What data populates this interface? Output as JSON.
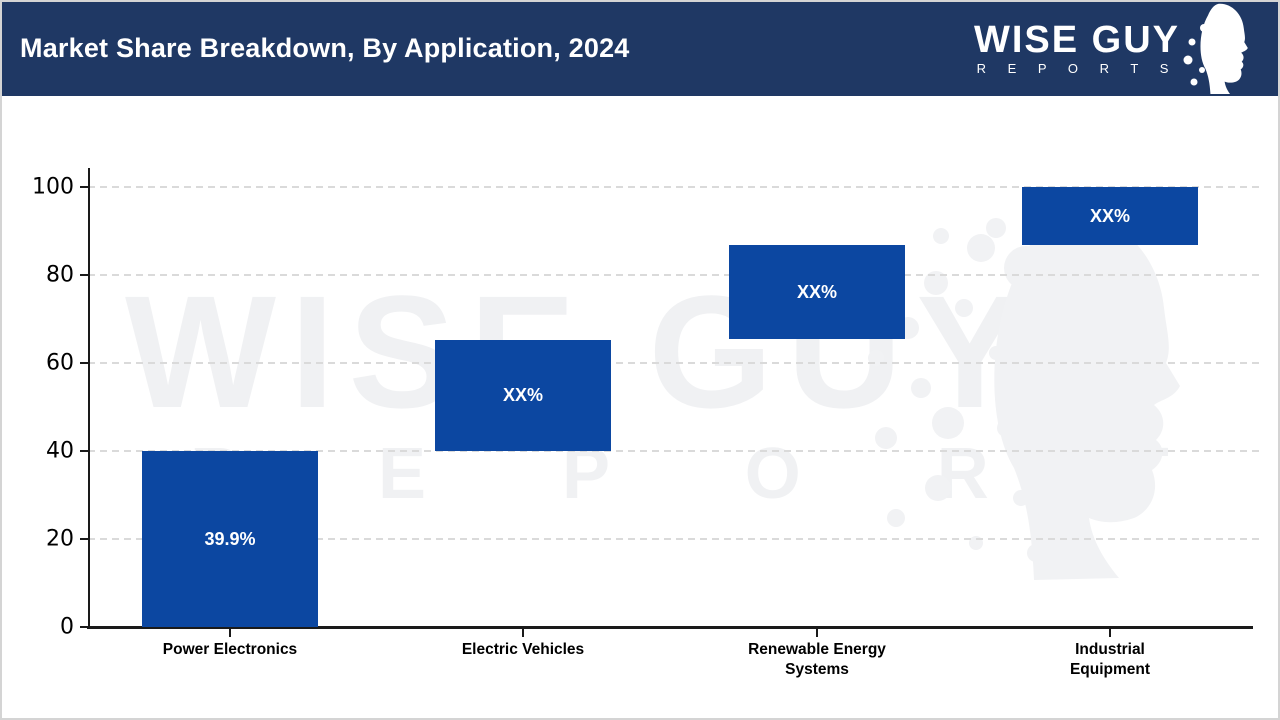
{
  "header": {
    "title": "Market Share Breakdown, By Application, 2024",
    "bg_color": "#1f3864",
    "logo": {
      "line1": "WISE GUY",
      "line2": "R E P O R T S"
    }
  },
  "watermark": {
    "line1": "WISE GUY",
    "line2": "R E P O R T S"
  },
  "chart_data": {
    "type": "bar",
    "subtype": "waterfall",
    "title": "Market Share Breakdown, By Application, 2024",
    "categories": [
      "Power Electronics",
      "Electric Vehicles",
      "Renewable Energy Systems",
      "Industrial Equipment"
    ],
    "category_display": [
      "Power Electronics",
      "Electric Vehicles",
      "Renewable Energy\nSystems",
      "Industrial\nEquipment"
    ],
    "bars": [
      {
        "category": "Power Electronics",
        "start": 0,
        "end": 39.9,
        "label": "39.9%"
      },
      {
        "category": "Electric Vehicles",
        "start": 39.9,
        "end": 65.2,
        "label": "XX%"
      },
      {
        "category": "Renewable Energy Systems",
        "start": 65.4,
        "end": 86.8,
        "label": "XX%"
      },
      {
        "category": "Industrial Equipment",
        "start": 86.8,
        "end": 100,
        "label": "XX%"
      }
    ],
    "yticks": [
      0,
      20,
      40,
      60,
      80,
      100
    ],
    "ylim": [
      0,
      100
    ],
    "xlabel": "",
    "ylabel": "",
    "grid": "horizontal-dashed",
    "legend": "none",
    "bar_color": "#0c47a1",
    "bar_label_color": "#ffffff",
    "gridline_color": "#dadada",
    "axis_color": "#1a1a1a"
  }
}
